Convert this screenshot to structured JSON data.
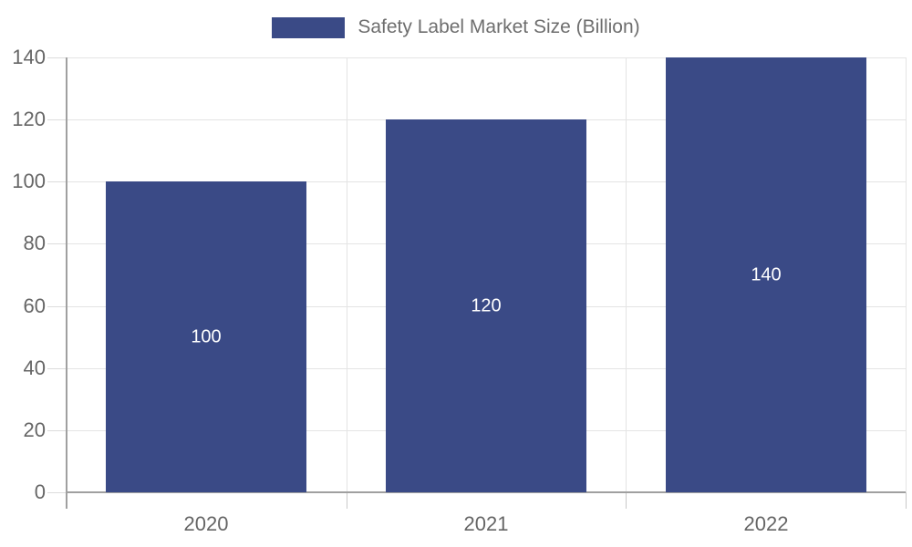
{
  "legend": {
    "label": "Safety Label Market Size (Billion)"
  },
  "chart_data": {
    "type": "bar",
    "categories": [
      "2020",
      "2021",
      "2022"
    ],
    "values": [
      100,
      120,
      140
    ],
    "series": [
      {
        "name": "Safety Label Market Size (Billion)",
        "values": [
          100,
          120,
          140
        ]
      }
    ],
    "title": "Safety Label Market Size (Billion)",
    "xlabel": "",
    "ylabel": "",
    "ylim": [
      0,
      140
    ],
    "yticks": [
      0,
      20,
      40,
      60,
      80,
      100,
      120,
      140
    ],
    "bar_labels": [
      "100",
      "120",
      "140"
    ],
    "legend_position": "top",
    "grid": true,
    "style": {
      "bar_color": "#3A4A86",
      "bar_label_color": "#ffffff",
      "legend_text_color": "#6e6e6e",
      "tick_text_color": "#666666",
      "gridline_color": "#e4e4e4",
      "axis_color": "#a0a0a0",
      "background_color": "#ffffff"
    }
  }
}
